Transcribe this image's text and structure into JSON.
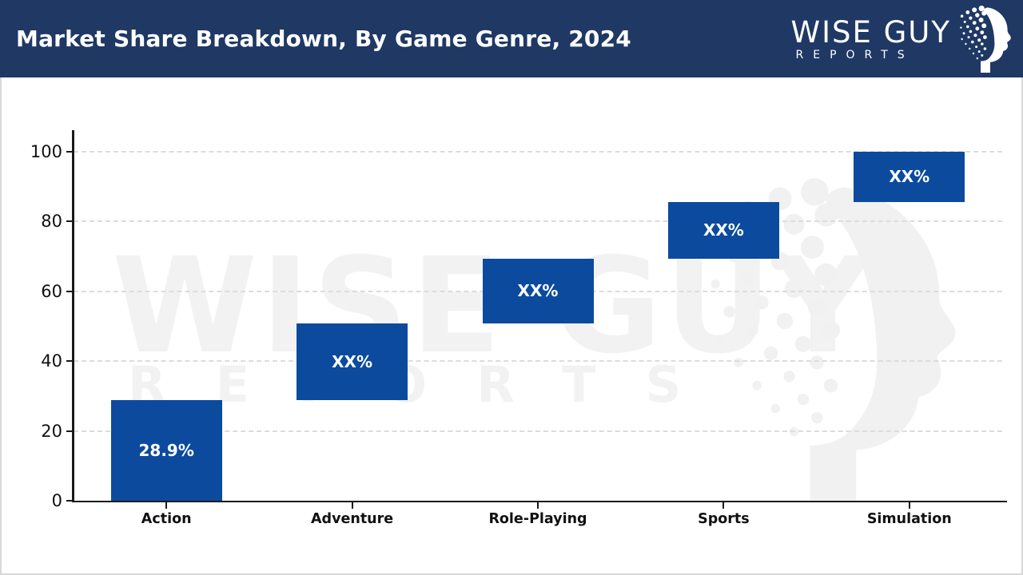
{
  "header": {
    "title": "Market Share Breakdown, By Game Genre, 2024",
    "logo": {
      "line1": "WISE GUY",
      "line2": "REPORTS"
    }
  },
  "watermark": {
    "line1": "WISE GUY",
    "line2": "REPORTS"
  },
  "colors": {
    "header_bg": "#1f3864",
    "bar": "#0c4a9e",
    "bar_label": "#ffffff",
    "gridline": "#dcdcdc",
    "axis": "#1a1a1a",
    "watermark": "#f1f1f1"
  },
  "chart_data": {
    "type": "bar",
    "subtype": "waterfall",
    "title": "Market Share Breakdown, By Game Genre, 2024",
    "categories": [
      "Action",
      "Adventure",
      "Role-Playing",
      "Sports",
      "Simulation"
    ],
    "segments": [
      {
        "category": "Action",
        "start": 0,
        "end": 28.9,
        "label": "28.9%"
      },
      {
        "category": "Adventure",
        "start": 28.9,
        "end": 50.8,
        "label": "XX%"
      },
      {
        "category": "Role-Playing",
        "start": 50.8,
        "end": 69.4,
        "label": "XX%"
      },
      {
        "category": "Sports",
        "start": 69.4,
        "end": 85.6,
        "label": "XX%"
      },
      {
        "category": "Simulation",
        "start": 85.6,
        "end": 100,
        "label": "XX%"
      }
    ],
    "yticks": [
      0,
      20,
      40,
      60,
      80,
      100
    ],
    "ylim": [
      0,
      106
    ],
    "xlabel": "",
    "ylabel": "",
    "grid": "horizontal-dashed",
    "legend": "none",
    "bar_color": "#0c4a9e",
    "label_color": "#ffffff"
  }
}
